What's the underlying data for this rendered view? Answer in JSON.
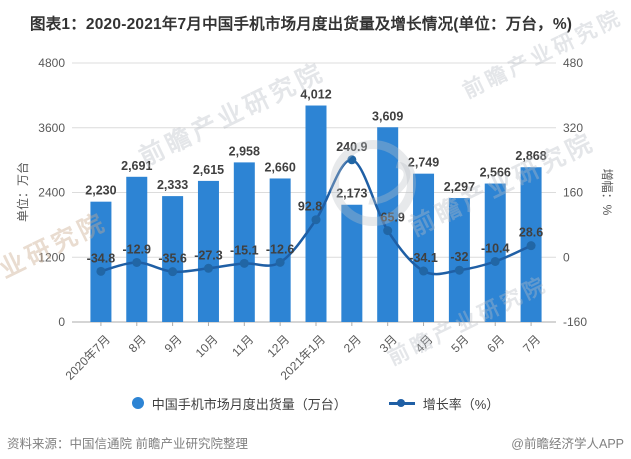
{
  "title": "图表1：2020-2021年7月中国手机市场月度出货量及增长情况(单位：万台，%)",
  "colors": {
    "bar": "#2D84D4",
    "line": "#1F5FA5",
    "marker": "#2166A5",
    "data_label": "#404040",
    "axis_label": "#595959",
    "grid": "#DCDCDC",
    "baseline": "#ABABAB",
    "title_text": "#333333",
    "footer_text": "#808080"
  },
  "chart_data": {
    "type": "bar+line",
    "categories": [
      "2020年7月",
      "8月",
      "9月",
      "10月",
      "11月",
      "12月",
      "2021年1月",
      "2月",
      "3月",
      "4月",
      "5月",
      "6月",
      "7月"
    ],
    "series": [
      {
        "name": "中国手机市场月度出货量（万台）",
        "type": "bar",
        "axis": "left",
        "values": [
          2230,
          2691,
          2333,
          2615,
          2958,
          2660,
          4012,
          2173,
          3609,
          2749,
          2297,
          2566,
          2868
        ],
        "labels": [
          "2,230",
          "2,691",
          "2,333",
          "2,615",
          "2,958",
          "2,660",
          "4,012",
          "2,173",
          "3,609",
          "2,749",
          "2,297",
          "2,566",
          "2,868"
        ]
      },
      {
        "name": "增长率（%）",
        "type": "line",
        "axis": "right",
        "values": [
          -34.8,
          -12.9,
          -35.6,
          -27.3,
          -15.1,
          -12.6,
          92.8,
          240.9,
          65.9,
          -34.1,
          -32,
          -10.4,
          28.6
        ],
        "labels": [
          "-34.8",
          "-12.9",
          "-35.6",
          "-27.3",
          "-15.1",
          "-12.6",
          "92.8",
          "240.9",
          "65.9",
          "-34.1",
          "-32",
          "-10.4",
          "28.6"
        ]
      }
    ],
    "left_axis": {
      "title": "单位：万台",
      "range": [
        0,
        4800
      ],
      "ticks": [
        0,
        1200,
        2400,
        3600,
        4800
      ],
      "tick_labels": [
        "0",
        "1200",
        "2400",
        "3600",
        "4800"
      ]
    },
    "right_axis": {
      "title": "增幅：%",
      "range": [
        -160,
        480
      ],
      "ticks": [
        -160,
        0,
        160,
        320,
        480
      ],
      "tick_labels": [
        "-160",
        "0",
        "160",
        "320",
        "480"
      ]
    },
    "grid": "horizontal",
    "legend_position": "bottom"
  },
  "legend": {
    "items": [
      {
        "label": "中国手机市场月度出货量（万台）",
        "marker": "circle"
      },
      {
        "label": "增长率（%）",
        "marker": "line-dot"
      }
    ]
  },
  "footer": {
    "source": "资料来源：中国信通院 前瞻产业研究院整理",
    "credit": "@前瞻经济学人APP"
  },
  "watermark": {
    "text": "前瞻产业研究院"
  }
}
